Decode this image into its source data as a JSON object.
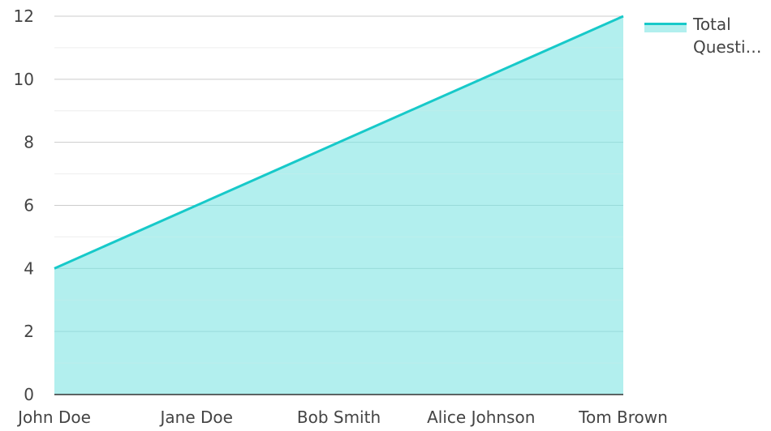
{
  "chart_data": {
    "type": "area",
    "categories": [
      "John Doe",
      "Jane Doe",
      "Bob Smith",
      "Alice Johnson",
      "Tom Brown"
    ],
    "series": [
      {
        "name": "Total Questi…",
        "values": [
          4,
          6,
          8,
          10,
          12
        ]
      }
    ],
    "ylim": [
      0,
      12
    ],
    "yticks": [
      0,
      2,
      4,
      6,
      8,
      10,
      12
    ],
    "grid": true,
    "legend": "top-right",
    "colors": {
      "line": "#17c9c9",
      "fill": "#b2efee",
      "grid_major": "#cccccc",
      "grid_minor": "#eeeeee",
      "axis": "#333333",
      "text": "#444444"
    }
  }
}
